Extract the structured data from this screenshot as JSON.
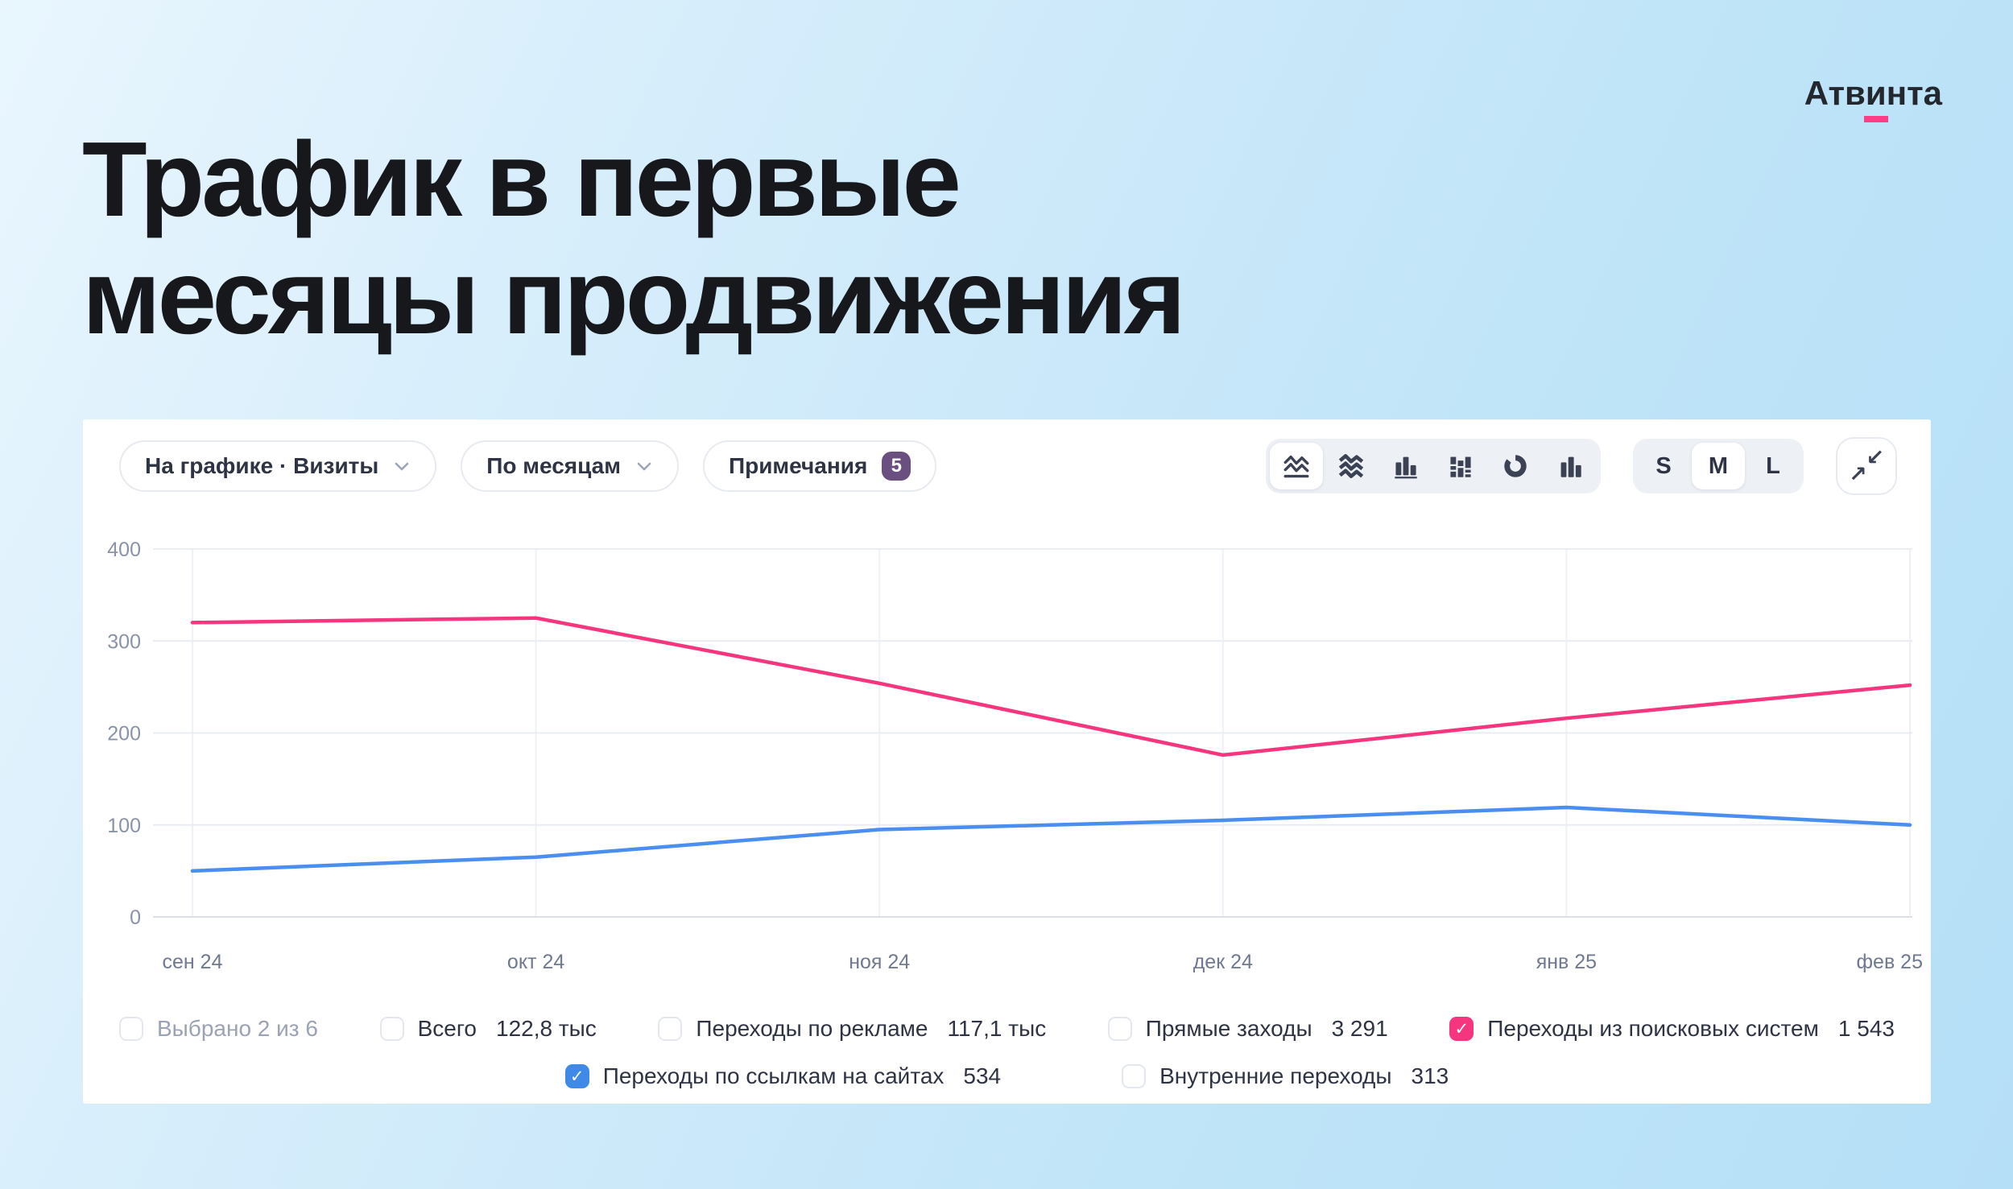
{
  "slide": {
    "title_line1": "Трафик в первые",
    "title_line2": "месяцы продвижения",
    "logo": {
      "part1": "Атв",
      "underlined": "и",
      "part2": "нта"
    }
  },
  "toolbar": {
    "metric_pill": "На графике · Визиты",
    "period_pill": "По месяцам",
    "notes_pill": "Примечания",
    "notes_count": "5",
    "chart_type_icons": [
      {
        "name": "line-chart",
        "selected": true
      },
      {
        "name": "stacked-area-chart",
        "selected": false
      },
      {
        "name": "bar-chart",
        "selected": false
      },
      {
        "name": "stacked-bar-chart",
        "selected": false
      },
      {
        "name": "pie-chart",
        "selected": false
      },
      {
        "name": "column-chart",
        "selected": false
      }
    ],
    "sizes": {
      "s": "S",
      "m": "M",
      "l": "L",
      "selected": "M"
    },
    "collapse_icon": "collapse-arrows"
  },
  "chart_data": {
    "type": "line",
    "title": "",
    "xlabel": "",
    "ylabel": "",
    "categories": [
      "сен 24",
      "окт 24",
      "ноя 24",
      "дек 24",
      "янв 25",
      "фев 25"
    ],
    "series": [
      {
        "name": "Переходы из поисковых систем",
        "color": "#f5357d",
        "values": [
          320,
          325,
          254,
          176,
          216,
          252
        ]
      },
      {
        "name": "Переходы по ссылкам на сайтах",
        "color": "#4a8ef0",
        "values": [
          50,
          65,
          95,
          105,
          119,
          100
        ]
      }
    ],
    "ylim": [
      0,
      400
    ],
    "yticks": [
      0,
      100,
      200,
      300,
      400
    ],
    "grid": true,
    "legend_position": "bottom"
  },
  "legend": {
    "items": [
      {
        "label": "Выбрано 2 из 6",
        "value": "",
        "checked": false,
        "muted": true
      },
      {
        "label": "Всего",
        "value": "122,8 тыс",
        "checked": false
      },
      {
        "label": "Переходы по рекламе",
        "value": "117,1 тыс",
        "checked": false
      },
      {
        "label": "Прямые заходы",
        "value": "3 291",
        "checked": false
      },
      {
        "label": "Переходы из поисковых систем",
        "value": "1 543",
        "checked": true,
        "color": "#f5357d"
      },
      {
        "label": "Переходы по ссылкам на сайтах",
        "value": "534",
        "checked": true,
        "color": "#4a8ef0"
      },
      {
        "label": "Внутренние переходы",
        "value": "313",
        "checked": false
      }
    ]
  },
  "colors": {
    "accent_pink": "#f5357d",
    "accent_blue": "#4a8ef0",
    "badge_purple": "#6a5080",
    "card_bg": "#ffffff",
    "grid_line": "#e9ecf2"
  }
}
